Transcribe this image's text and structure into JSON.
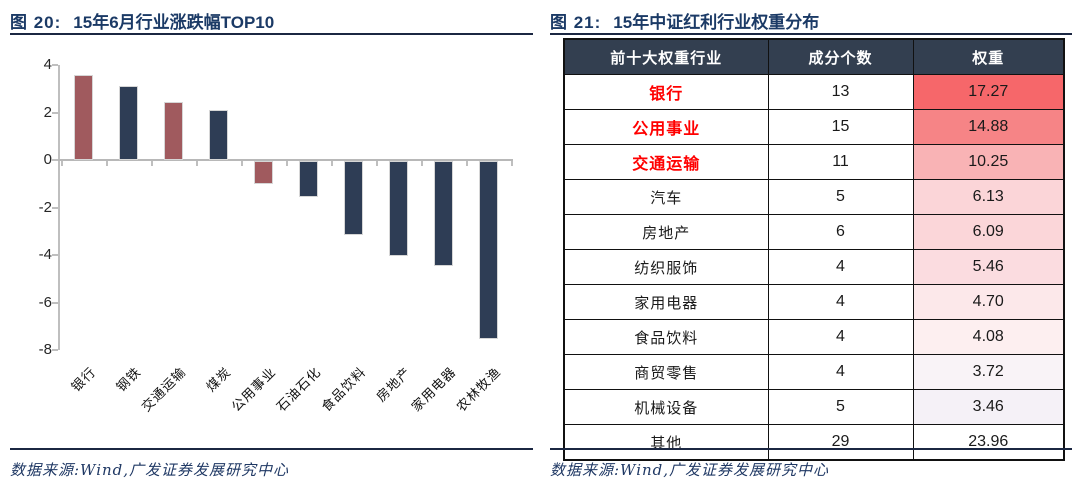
{
  "left_panel": {
    "fig_num": "图 20:",
    "title": "15年6月行业涨跌幅TOP10",
    "source": "数据来源:Wind,广发证券发展研究中心"
  },
  "right_panel": {
    "fig_num": "图 21:",
    "title": "15年中证红利行业权重分布",
    "source": "数据来源:Wind,广发证券发展研究中心"
  },
  "colors": {
    "bar_negative_navy": "#2e3d55",
    "bar_highlight_maroon": "#a05a5e",
    "table_header_bg": "#333f50",
    "highlight_text_red": "#ff0000",
    "title_navy": "#1b3a66"
  },
  "chart_data": [
    {
      "type": "bar",
      "title": "15年6月行业涨跌幅TOP10",
      "categories": [
        "银行",
        "钢铁",
        "交通运输",
        "煤炭",
        "公用事业",
        "石油石化",
        "食品饮料",
        "房地产",
        "家用电器",
        "农林牧渔"
      ],
      "values": [
        3.6,
        3.1,
        2.45,
        2.1,
        -0.95,
        -1.5,
        -3.1,
        -4.0,
        -4.4,
        -7.5
      ],
      "bar_colors": [
        "#a05a5e",
        "#2e3d55",
        "#a05a5e",
        "#2e3d55",
        "#a05a5e",
        "#2e3d55",
        "#2e3d55",
        "#2e3d55",
        "#2e3d55",
        "#2e3d55"
      ],
      "xlabel": "",
      "ylabel": "",
      "ylim": [
        -8,
        4
      ],
      "yticks": [
        4,
        2,
        0,
        -2,
        -4,
        -6,
        -8
      ],
      "grid": false,
      "legend": null
    },
    {
      "type": "table",
      "title": "15年中证红利行业权重分布",
      "columns": [
        "前十大权重行业",
        "成分个数",
        "权重"
      ],
      "rows": [
        {
          "industry": "银行",
          "count": "13",
          "weight": "17.27",
          "highlight": true,
          "weight_bg": "#f6676a"
        },
        {
          "industry": "公用事业",
          "count": "15",
          "weight": "14.88",
          "highlight": true,
          "weight_bg": "#f68486"
        },
        {
          "industry": "交通运输",
          "count": "11",
          "weight": "10.25",
          "highlight": true,
          "weight_bg": "#f9b3b5"
        },
        {
          "industry": "汽车",
          "count": "5",
          "weight": "6.13",
          "highlight": false,
          "weight_bg": "#fbd5d8"
        },
        {
          "industry": "房地产",
          "count": "6",
          "weight": "6.09",
          "highlight": false,
          "weight_bg": "#fbd6d9"
        },
        {
          "industry": "纺织服饰",
          "count": "4",
          "weight": "5.46",
          "highlight": false,
          "weight_bg": "#fbdce0"
        },
        {
          "industry": "家用电器",
          "count": "4",
          "weight": "4.70",
          "highlight": false,
          "weight_bg": "#fce8ea"
        },
        {
          "industry": "食品饮料",
          "count": "4",
          "weight": "4.08",
          "highlight": false,
          "weight_bg": "#fdeff0"
        },
        {
          "industry": "商贸零售",
          "count": "4",
          "weight": "3.72",
          "highlight": false,
          "weight_bg": "#f9f3f7"
        },
        {
          "industry": "机械设备",
          "count": "5",
          "weight": "3.46",
          "highlight": false,
          "weight_bg": "#f5f1f7"
        },
        {
          "industry": "其他",
          "count": "29",
          "weight": "23.96",
          "highlight": false,
          "weight_bg": "#ffffff"
        }
      ]
    }
  ]
}
